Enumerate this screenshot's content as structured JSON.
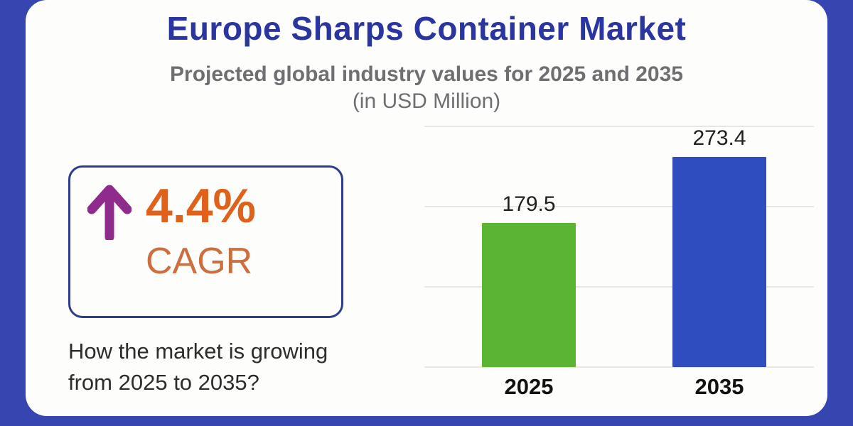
{
  "header": {
    "title": "Europe Sharps Container Market",
    "subtitle": "Projected global industry values for 2025 and 2035",
    "unit_note": "(in USD Million)"
  },
  "cagr_card": {
    "value": "4.4%",
    "label": "CAGR",
    "arrow_icon": "arrow-up",
    "arrow_color": "#8f2b8c",
    "value_color": "#e0611a",
    "label_color": "#ca6f3d",
    "border_color": "#2e3c8e"
  },
  "question": {
    "line1": "How the market is growing",
    "line2": "from 2025 to 2035?"
  },
  "chart_data": {
    "type": "bar",
    "categories": [
      "2025",
      "2035"
    ],
    "values": [
      179.5,
      273.4
    ],
    "bar_colors": [
      "#5cb434",
      "#2f4dbe"
    ],
    "ylim": [
      0,
      300
    ],
    "gridline_values": [
      0,
      100,
      200,
      300
    ],
    "grid": "horizontal",
    "legend": "none",
    "value_labels_shown": true,
    "title": "Europe Sharps Container Market",
    "xlabel": "",
    "ylabel": ""
  },
  "theme": {
    "frame_color": "#3645b0",
    "card_color": "#fdfdfb",
    "title_color": "#2a35a0",
    "subtitle_color": "#6e6f72",
    "text_color": "#2d2d2d",
    "gridline_color": "#e7e7e7"
  }
}
